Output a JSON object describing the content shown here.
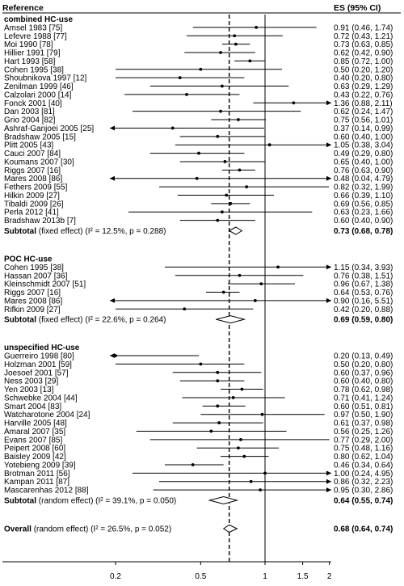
{
  "header": {
    "reference": "Reference",
    "es_ci": "ES (95% CI)"
  },
  "chart_data": {
    "type": "forest",
    "xscale": "log",
    "xlim": [
      0.15,
      2.2
    ],
    "xticks": [
      0.2,
      0.5,
      1,
      1.5,
      2
    ],
    "xtick_labels": [
      "0.2",
      "0.5",
      "1",
      "1.5",
      "2"
    ],
    "reference_line": 1,
    "dashed_line": 0.68,
    "groups": [
      {
        "label": "combined HC-use",
        "studies": [
          {
            "ref": "Amsel 1983 [75]",
            "es": 0.91,
            "lo": 0.46,
            "hi": 1.74,
            "ci": "0.91 (0.46, 1.74)"
          },
          {
            "ref": "Lefevre 1988 [77]",
            "es": 0.72,
            "lo": 0.43,
            "hi": 1.21,
            "ci": "0.72 (0.43, 1.21)"
          },
          {
            "ref": "Moi 1990 [78]",
            "es": 0.73,
            "lo": 0.63,
            "hi": 0.85,
            "ci": "0.73 (0.63, 0.85)"
          },
          {
            "ref": "Hillier 1991 [79]",
            "es": 0.62,
            "lo": 0.42,
            "hi": 0.9,
            "ci": "0.62 (0.42, 0.90)"
          },
          {
            "ref": "Hart 1993 [58]",
            "es": 0.85,
            "lo": 0.72,
            "hi": 1.0,
            "ci": "0.85 (0.72, 1.00)"
          },
          {
            "ref": "Cohen 1995 [38]",
            "es": 0.5,
            "lo": 0.2,
            "hi": 1.2,
            "ci": "0.50 (0.20, 1.20)"
          },
          {
            "ref": "Shoubnikova 1997 [12]",
            "es": 0.4,
            "lo": 0.2,
            "hi": 0.8,
            "ci": "0.40 (0.20, 0.80)"
          },
          {
            "ref": "Zenilman 1999 [46]",
            "es": 0.63,
            "lo": 0.29,
            "hi": 1.29,
            "ci": "0.63 (0.29, 1.29)"
          },
          {
            "ref": "Calzolari 2000 [14]",
            "es": 0.43,
            "lo": 0.22,
            "hi": 0.76,
            "ci": "0.43 (0.22, 0.76)"
          },
          {
            "ref": "Fonck 2001 [40]",
            "es": 1.36,
            "lo": 0.88,
            "hi": 2.11,
            "ci": "1.36 (0.88, 2.11)"
          },
          {
            "ref": "Dan 2003 [81]",
            "es": 0.62,
            "lo": 0.24,
            "hi": 1.47,
            "ci": "0.62 (0.24, 1.47)"
          },
          {
            "ref": "Grio 2004 [82]",
            "es": 0.75,
            "lo": 0.56,
            "hi": 1.01,
            "ci": "0.75 (0.56, 1.01)"
          },
          {
            "ref": "Ashraf-Ganjoei 2005 [25]",
            "es": 0.37,
            "lo": 0.14,
            "hi": 0.99,
            "ci": "0.37 (0.14, 0.99)"
          },
          {
            "ref": "Bradshaw 2005 [15]",
            "es": 0.6,
            "lo": 0.4,
            "hi": 1.0,
            "ci": "0.60 (0.40, 1.00)"
          },
          {
            "ref": "Plitt 2005 [43]",
            "es": 1.05,
            "lo": 0.38,
            "hi": 3.04,
            "ci": "1.05 (0.38, 3.04)"
          },
          {
            "ref": "Cauci 2007 [84]",
            "es": 0.49,
            "lo": 0.29,
            "hi": 0.8,
            "ci": "0.49 (0.29, 0.80)"
          },
          {
            "ref": "Koumans 2007 [30]",
            "es": 0.65,
            "lo": 0.4,
            "hi": 1.0,
            "ci": "0.65 (0.40, 1.00)"
          },
          {
            "ref": "Riggs 2007 [16]",
            "es": 0.76,
            "lo": 0.63,
            "hi": 0.9,
            "ci": "0.76 (0.63, 0.90)"
          },
          {
            "ref": "Mares 2008 [86]",
            "es": 0.48,
            "lo": 0.04,
            "hi": 4.79,
            "ci": "0.48 (0.04, 4.79)"
          },
          {
            "ref": "Fethers 2009 [55]",
            "es": 0.82,
            "lo": 0.32,
            "hi": 1.99,
            "ci": "0.82 (0.32, 1.99)"
          },
          {
            "ref": "Hilkin 2009 [27]",
            "es": 0.66,
            "lo": 0.39,
            "hi": 1.1,
            "ci": "0.66 (0.39, 1.10)"
          },
          {
            "ref": "Tibaldi 2009 [26]",
            "es": 0.69,
            "lo": 0.56,
            "hi": 0.85,
            "ci": "0.69 (0.56, 0.85)"
          },
          {
            "ref": "Perla 2012 [41]",
            "es": 0.63,
            "lo": 0.23,
            "hi": 1.66,
            "ci": "0.63 (0.23, 1.66)"
          },
          {
            "ref": "Bradshaw 2013b [7]",
            "es": 0.6,
            "lo": 0.4,
            "hi": 0.9,
            "ci": "0.60 (0.40, 0.90)"
          }
        ],
        "subtotal": {
          "label": "Subtotal",
          "effect": "(fixed effect) (I² = 12.5%, p = 0.288)",
          "es": 0.73,
          "lo": 0.68,
          "hi": 0.78,
          "ci": "0.73 (0.68, 0.78)"
        }
      },
      {
        "label": "POC HC-use",
        "studies": [
          {
            "ref": "Cohen 1995 [38]",
            "es": 1.15,
            "lo": 0.34,
            "hi": 3.93,
            "ci": "1.15 (0.34, 3.93)"
          },
          {
            "ref": "Hassan 2007 [36]",
            "es": 0.76,
            "lo": 0.38,
            "hi": 1.51,
            "ci": "0.76 (0.38, 1.51)"
          },
          {
            "ref": "Kleinschmidt 2007 [51]",
            "es": 0.96,
            "lo": 0.67,
            "hi": 1.38,
            "ci": "0.96 (0.67, 1.38)"
          },
          {
            "ref": "Riggs 2007 [16]",
            "es": 0.64,
            "lo": 0.53,
            "hi": 0.76,
            "ci": "0.64 (0.53, 0.76)"
          },
          {
            "ref": "Mares 2008 [86]",
            "es": 0.9,
            "lo": 0.16,
            "hi": 5.51,
            "ci": "0.90 (0.16, 5.51)"
          },
          {
            "ref": "Rifkin 2009 [27]",
            "es": 0.42,
            "lo": 0.2,
            "hi": 0.88,
            "ci": "0.42 (0.20, 0.88)"
          }
        ],
        "subtotal": {
          "label": "Subtotal",
          "effect": "(fixed effect) (I² = 22.6%, p = 0.264)",
          "es": 0.69,
          "lo": 0.59,
          "hi": 0.8,
          "ci": "0.69 (0.59, 0.80)"
        }
      },
      {
        "label": "unspecified HC-use",
        "studies": [
          {
            "ref": "Guerreiro 1998 [80]",
            "es": 0.2,
            "lo": 0.13,
            "hi": 0.49,
            "ci": "0.20 (0.13, 0.49)"
          },
          {
            "ref": "Holzman 2001 [59]",
            "es": 0.5,
            "lo": 0.2,
            "hi": 0.8,
            "ci": "0.50 (0.20, 0.80)"
          },
          {
            "ref": "Joesoef 2001 [57]",
            "es": 0.6,
            "lo": 0.37,
            "hi": 0.96,
            "ci": "0.60 (0.37, 0.96)"
          },
          {
            "ref": "Ness 2003 [29]",
            "es": 0.6,
            "lo": 0.4,
            "hi": 0.8,
            "ci": "0.60 (0.40, 0.80)"
          },
          {
            "ref": "Yen 2003 [13]",
            "es": 0.78,
            "lo": 0.62,
            "hi": 0.98,
            "ci": "0.78 (0.62, 0.98)"
          },
          {
            "ref": "Schwebke 2004 [44]",
            "es": 0.71,
            "lo": 0.41,
            "hi": 1.24,
            "ci": "0.71 (0.41, 1.24)"
          },
          {
            "ref": "Smart 2004 [83]",
            "es": 0.6,
            "lo": 0.51,
            "hi": 0.81,
            "ci": "0.60 (0.51, 0.81)"
          },
          {
            "ref": "Watcharotone 2004 [24]",
            "es": 0.97,
            "lo": 0.5,
            "hi": 1.9,
            "ci": "0.97 (0.50, 1.90)"
          },
          {
            "ref": "Harville 2005 [48]",
            "es": 0.61,
            "lo": 0.37,
            "hi": 0.98,
            "ci": "0.61 (0.37, 0.98)"
          },
          {
            "ref": "Amaral 2007 [35]",
            "es": 0.56,
            "lo": 0.25,
            "hi": 1.26,
            "ci": "0.56 (0.25, 1.26)"
          },
          {
            "ref": "Evans 2007 [85]",
            "es": 0.77,
            "lo": 0.29,
            "hi": 2.0,
            "ci": "0.77 (0.29, 2.00)"
          },
          {
            "ref": "Peipert 2008 [60]",
            "es": 0.75,
            "lo": 0.48,
            "hi": 1.16,
            "ci": "0.75 (0.48, 1.16)"
          },
          {
            "ref": "Baisley 2009 [42]",
            "es": 0.8,
            "lo": 0.62,
            "hi": 1.04,
            "ci": "0.80 (0.62, 1.04)"
          },
          {
            "ref": "Yotebieng 2009 [39]",
            "es": 0.46,
            "lo": 0.34,
            "hi": 0.64,
            "ci": "0.46 (0.34, 0.64)"
          },
          {
            "ref": "Brotman 2011 [56]",
            "es": 1.0,
            "lo": 0.24,
            "hi": 4.95,
            "ci": "1.00 (0.24, 4.95)"
          },
          {
            "ref": "Kampan 2011 [87]",
            "es": 0.86,
            "lo": 0.32,
            "hi": 2.23,
            "ci": "0.86 (0.32, 2.23)"
          },
          {
            "ref": "Mascarenhas 2012 [88]",
            "es": 0.95,
            "lo": 0.3,
            "hi": 2.86,
            "ci": "0.95 (0.30, 2.86)"
          }
        ],
        "subtotal": {
          "label": "Subtotal",
          "effect": "(random effect) (I² = 39.1%, p = 0.050)",
          "es": 0.64,
          "lo": 0.55,
          "hi": 0.74,
          "ci": "0.64 (0.55, 0.74)"
        }
      }
    ],
    "overall": {
      "label": "Overall",
      "effect": "(random effect) (I² = 26.5%, p = 0.052)",
      "es": 0.68,
      "lo": 0.64,
      "hi": 0.74,
      "ci": "0.68 (0.64, 0.74)"
    }
  }
}
